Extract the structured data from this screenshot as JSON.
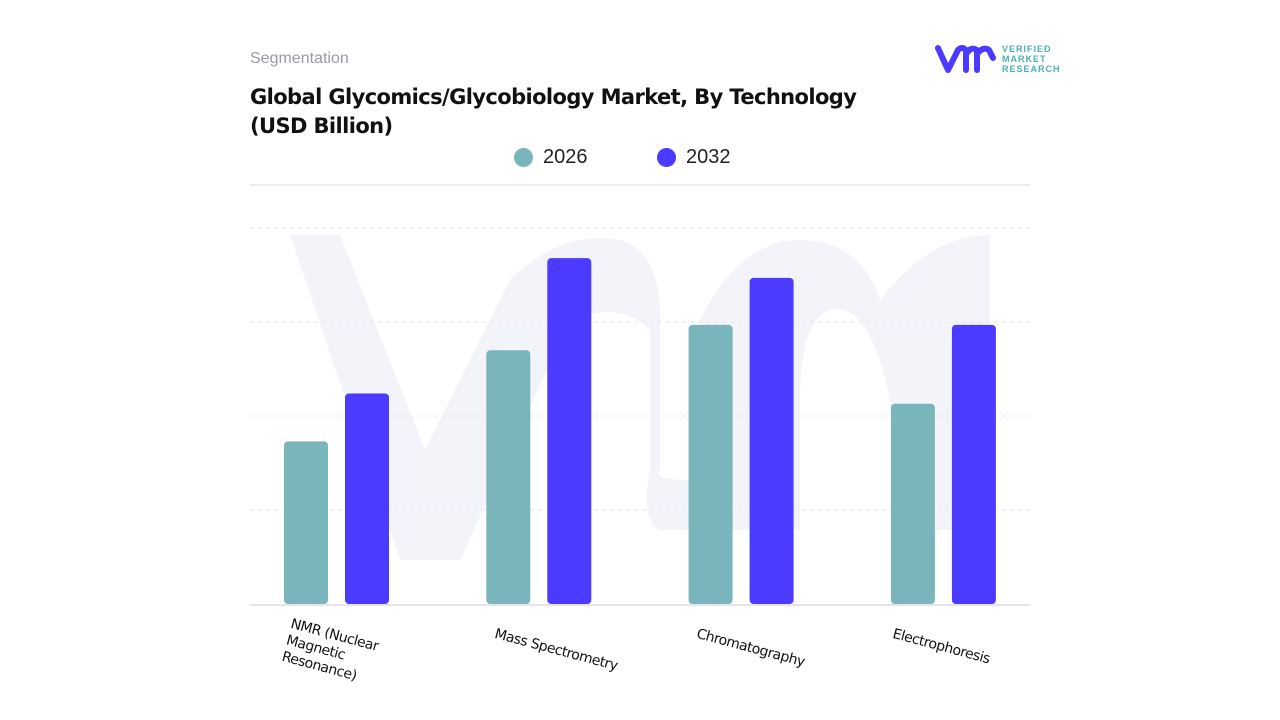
{
  "header": {
    "segment_label": "Segmentation",
    "logo_text": "VERIFIED MARKET RESEARCH",
    "logo_lines": [
      "VERIFIED",
      "MARKET",
      "RESEARCH"
    ]
  },
  "colors": {
    "series_2026": "#7ab5bb",
    "series_2032": "#4b3aff",
    "watermark": "#f2f2fa",
    "grid": "#e6e6ee"
  },
  "chart_data": {
    "type": "bar",
    "title": "Global Glycomics/Glycobiology Market, By Technology (USD Billion)",
    "categories": [
      "NMR (Nuclear Magnetic Resonance)",
      "Mass Spectrometry",
      "Chromatography",
      "Electrophoresis"
    ],
    "series": [
      {
        "name": "2026",
        "values": [
          1.73,
          2.7,
          2.97,
          2.13
        ]
      },
      {
        "name": "2032",
        "values": [
          2.24,
          3.68,
          3.47,
          2.97
        ]
      }
    ],
    "ylim": [
      0,
      4
    ],
    "grid": true,
    "legend_position": "top-center",
    "y_tick_labels_shown": false
  }
}
